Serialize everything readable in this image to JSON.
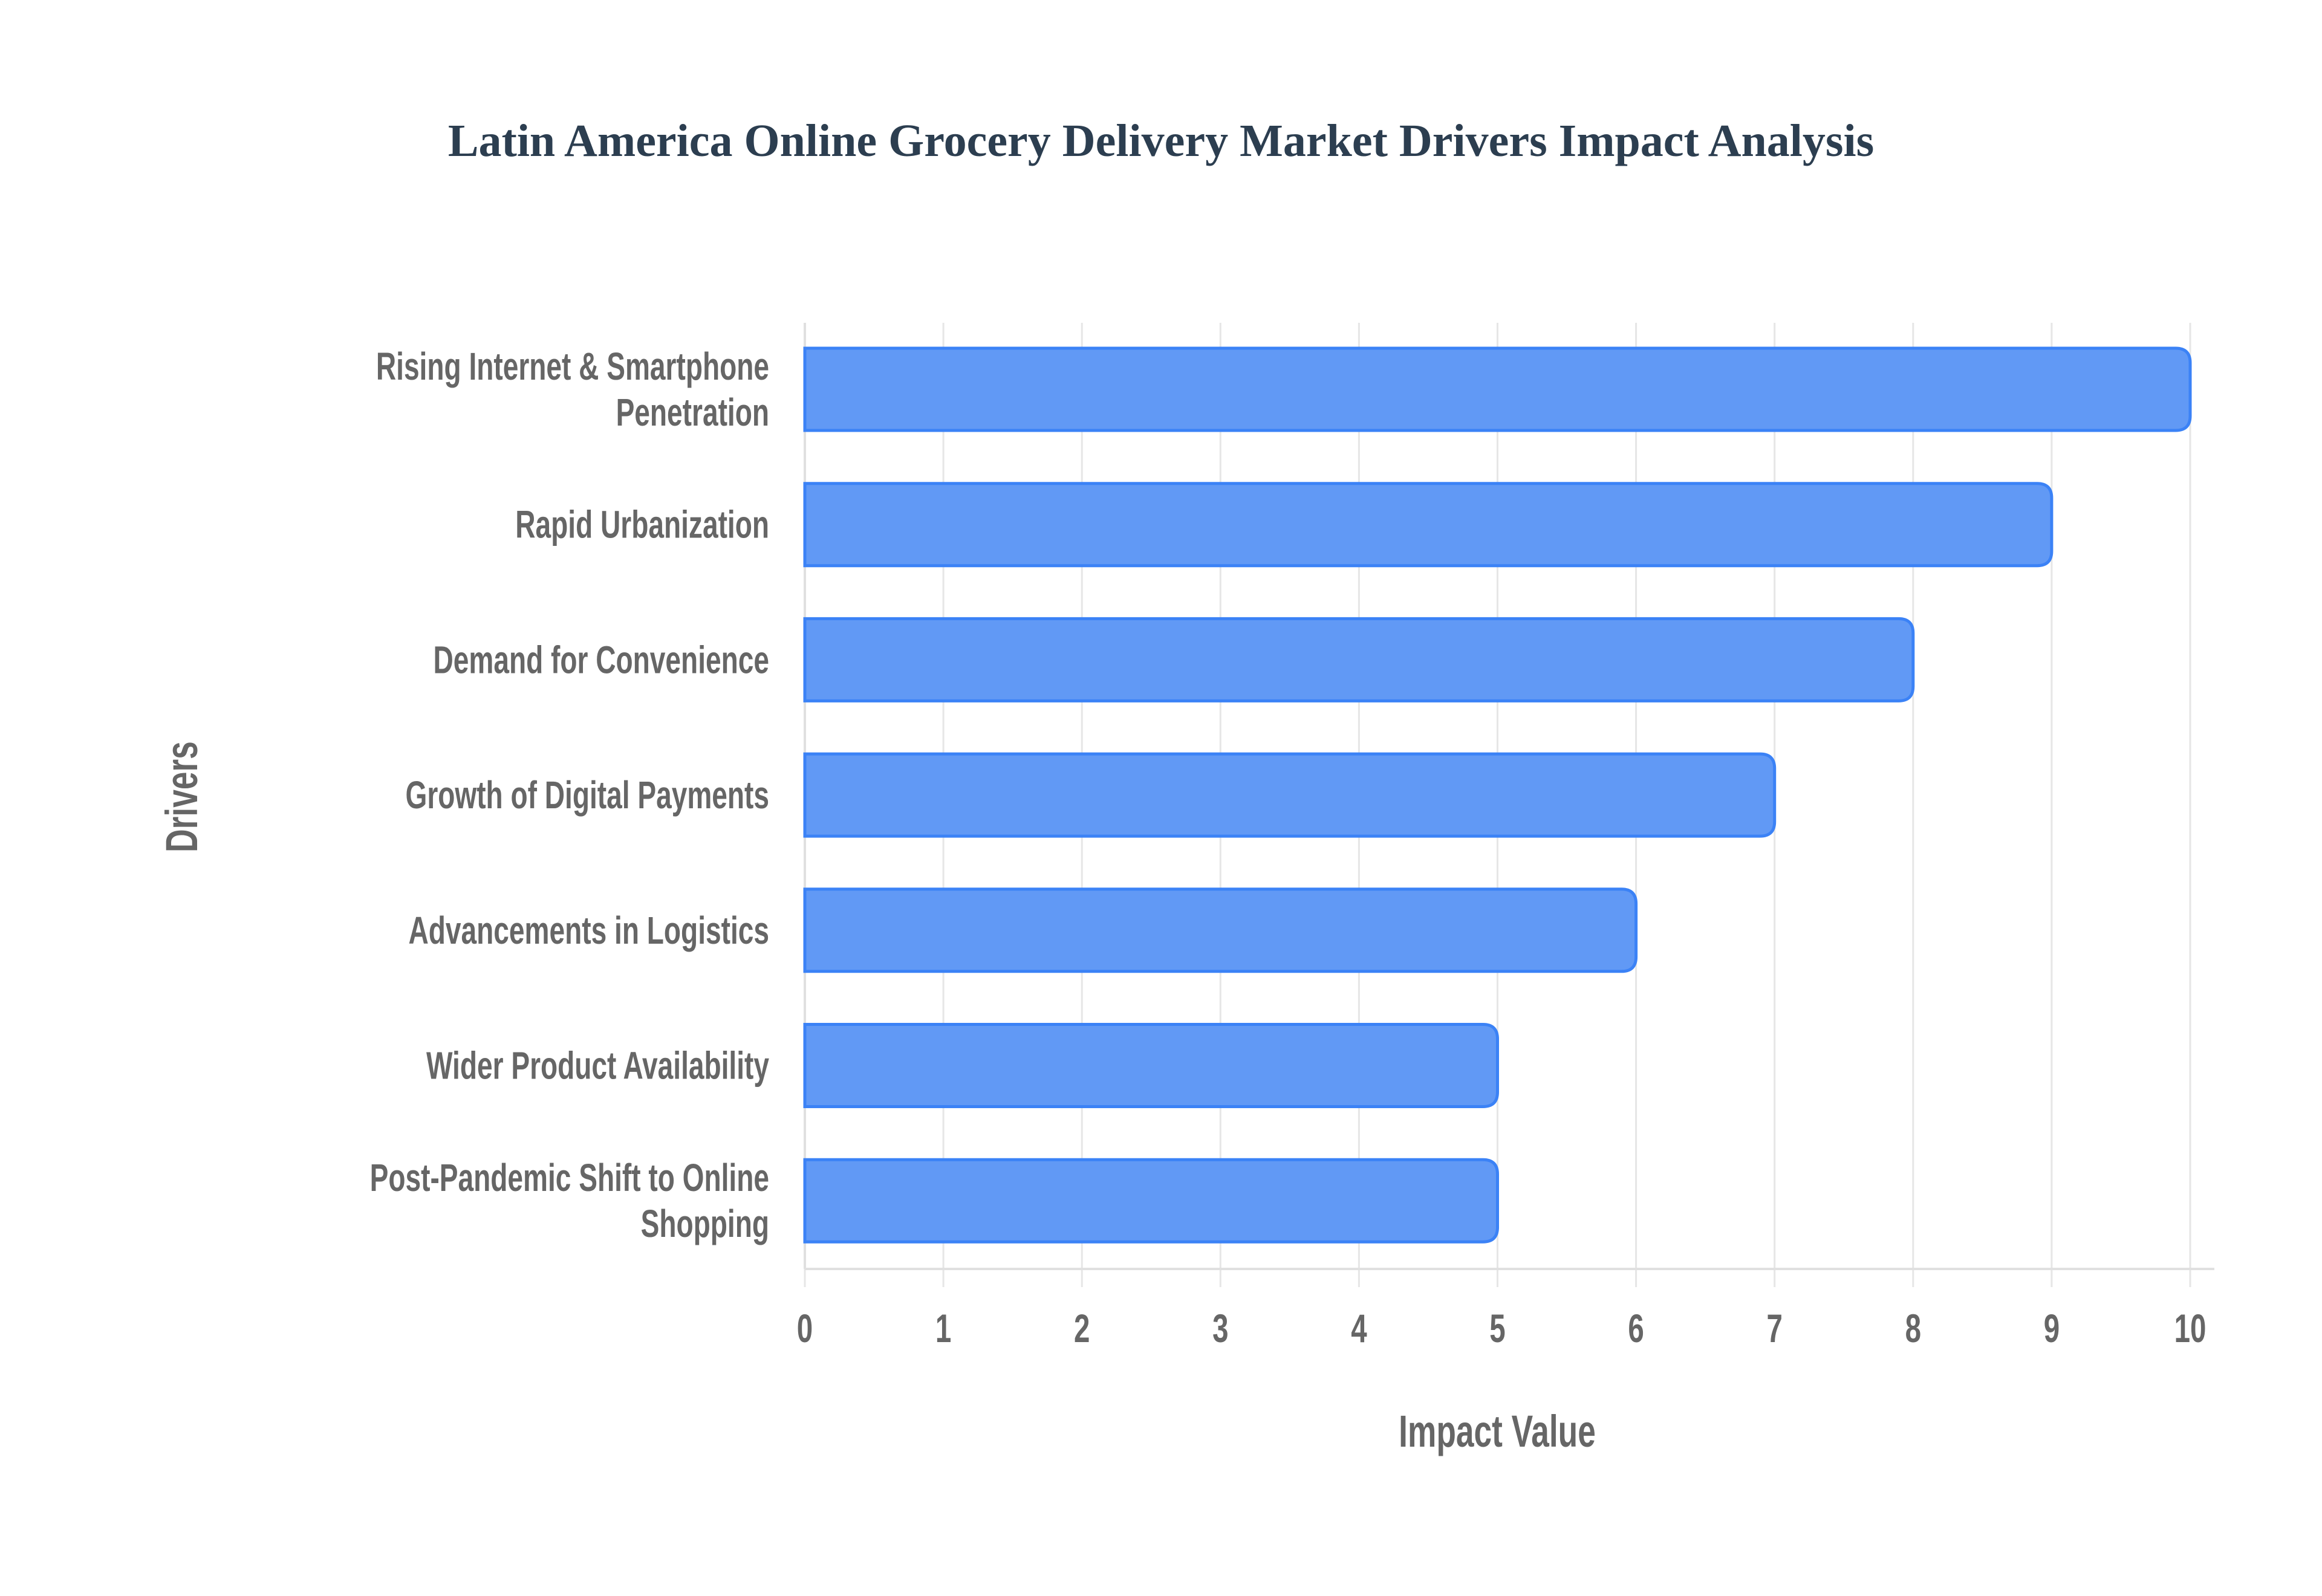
{
  "chart_data": {
    "type": "bar",
    "orientation": "horizontal",
    "title": "Latin America Online Grocery Delivery Market Drivers Impact Analysis",
    "xlabel": "Impact Value",
    "ylabel": "Drivers",
    "xlim": [
      0,
      10
    ],
    "xticks": [
      "0",
      "1",
      "2",
      "3",
      "4",
      "5",
      "6",
      "7",
      "8",
      "9",
      "10"
    ],
    "grid": true,
    "categories": [
      [
        "Rising Internet & Smartphone",
        "Penetration"
      ],
      [
        "Rapid Urbanization"
      ],
      [
        "Demand for Convenience"
      ],
      [
        "Growth of Digital Payments"
      ],
      [
        "Advancements in Logistics"
      ],
      [
        "Wider Product Availability"
      ],
      [
        "Post-Pandemic Shift to Online",
        "Shopping"
      ]
    ],
    "values": [
      10,
      9,
      8,
      7,
      6,
      5,
      5
    ],
    "colors": {
      "bar_fill": "#6199f5",
      "bar_border": "#3b82f6",
      "grid": "#e6e6e6",
      "text": "#666666",
      "title": "#2c3e50"
    }
  }
}
